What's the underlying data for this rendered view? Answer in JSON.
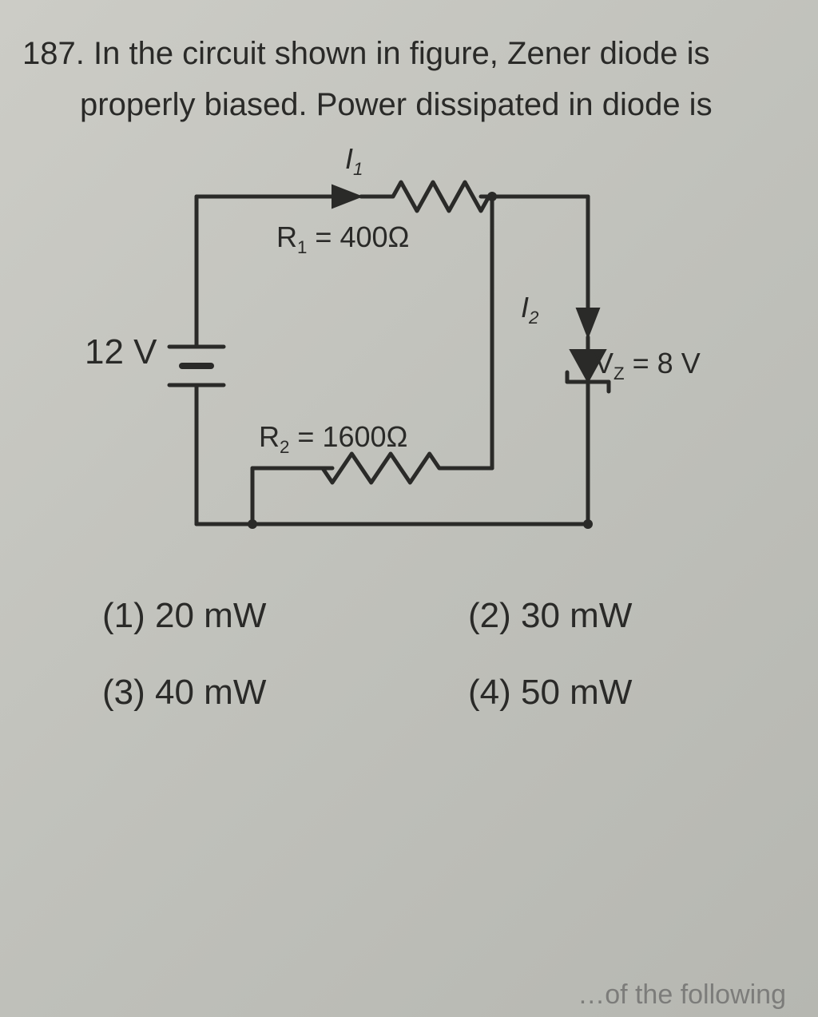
{
  "question": {
    "number": "187.",
    "line1": "In the circuit shown in figure, Zener diode is",
    "line2": "properly biased. Power dissipated in diode is"
  },
  "circuit": {
    "source_label": "12 V",
    "R1_label": "R₁ = 400Ω",
    "R2_label": "R₂ = 1600Ω",
    "I1_label": "I₁",
    "I2_label": "I₂",
    "Vz_label": "V",
    "Vz_sub": "Z",
    "Vz_value": " = 8 V",
    "stroke": "#2a2a28",
    "stroke_width": 5,
    "arrow_fill": "#2a2a28"
  },
  "options": {
    "o1": "(1)  20 mW",
    "o2": "(2)  30 mW",
    "o3": "(3)  40 mW",
    "o4": "(4)  50 mW"
  },
  "footer": "…of the following"
}
